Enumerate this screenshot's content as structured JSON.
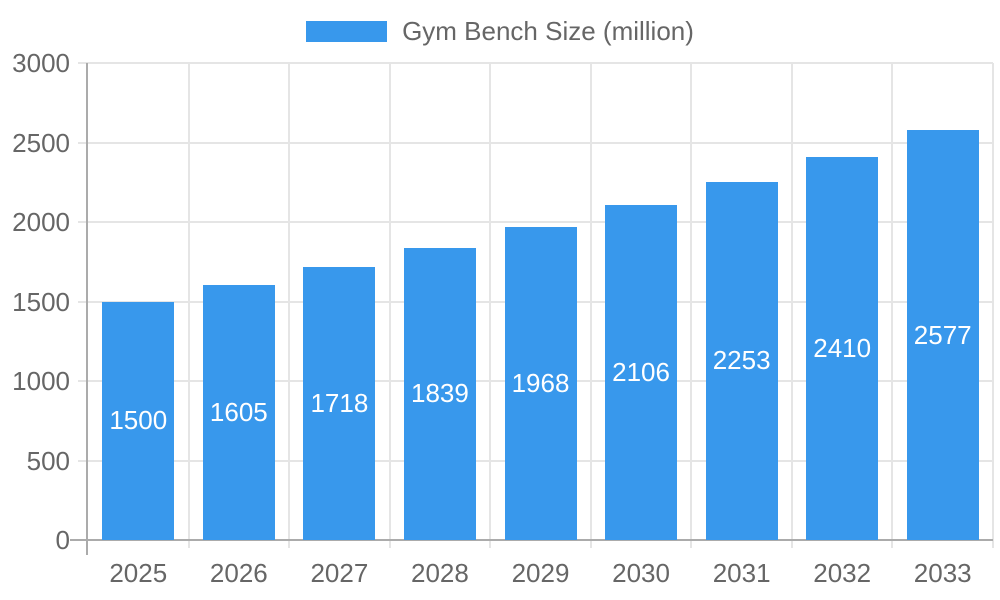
{
  "chart_data": {
    "type": "bar",
    "title": "",
    "legend": {
      "label": "Gym Bench Size (million)",
      "position": "top"
    },
    "categories": [
      "2025",
      "2026",
      "2027",
      "2028",
      "2029",
      "2030",
      "2031",
      "2032",
      "2033"
    ],
    "series": [
      {
        "name": "Gym Bench Size (million)",
        "values": [
          1500,
          1605,
          1718,
          1839,
          1968,
          2106,
          2253,
          2410,
          2577
        ]
      }
    ],
    "bar_value_labels": [
      "1500",
      "1605",
      "1718",
      "1839",
      "1968",
      "2106",
      "2253",
      "2410",
      "2577"
    ],
    "xlabel": "",
    "ylabel": "",
    "ylim": [
      0,
      3000
    ],
    "yticks": [
      0,
      500,
      1000,
      1500,
      2000,
      2500,
      3000
    ],
    "grid": "on",
    "colors": {
      "bar": "#3898EC",
      "grid": "#E5E5E5",
      "axis": "#ABABAB",
      "tick_text": "#666666",
      "bar_label_text": "#FFFFFF",
      "background": "#FFFFFF"
    }
  }
}
